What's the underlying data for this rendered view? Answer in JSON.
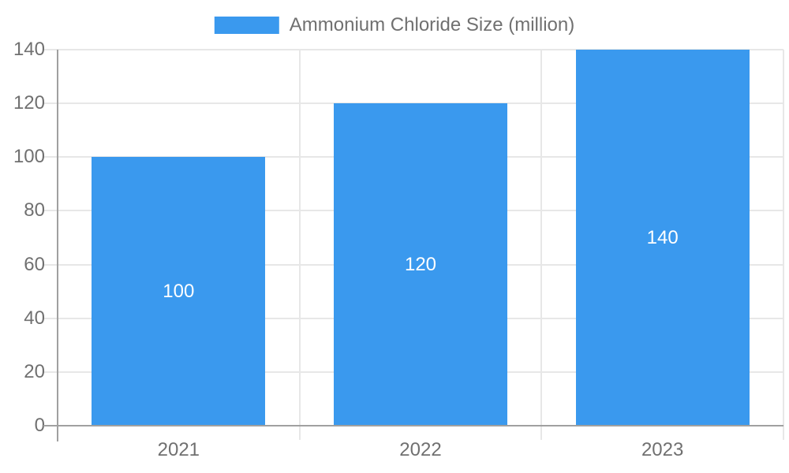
{
  "chart_data": {
    "type": "bar",
    "title": "",
    "legend": {
      "label": "Ammonium Chloride Size (million)",
      "position": "top-center",
      "marker": "rect"
    },
    "categories": [
      "2021",
      "2022",
      "2023"
    ],
    "series": [
      {
        "name": "Ammonium Chloride Size (million)",
        "values": [
          100,
          120,
          140
        ]
      }
    ],
    "data_labels": {
      "visible": true,
      "position": "inside-middle",
      "values": [
        "100",
        "120",
        "140"
      ]
    },
    "xlabel": "",
    "ylabel": "",
    "ylim": [
      0,
      140
    ],
    "yticks": [
      0,
      20,
      40,
      60,
      80,
      100,
      120,
      140
    ],
    "grid": {
      "horizontal": true,
      "vertical": true
    },
    "colors": {
      "bar": "#3a99ee",
      "axis_line": "#a0a0a0",
      "grid_line": "#e7e7e7",
      "tick_label": "#707070",
      "data_label": "#ffffff",
      "background": "#ffffff"
    }
  }
}
